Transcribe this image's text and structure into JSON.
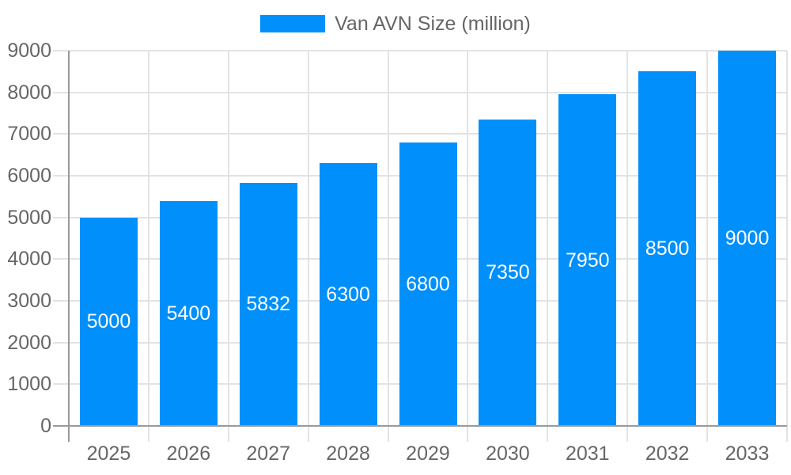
{
  "chart_data": {
    "type": "bar",
    "title": "",
    "legend": {
      "label": "Van AVN Size (million)",
      "position": "top"
    },
    "categories": [
      "2025",
      "2026",
      "2027",
      "2028",
      "2029",
      "2030",
      "2031",
      "2032",
      "2033"
    ],
    "series": [
      {
        "name": "Van AVN Size (million)",
        "values": [
          5000,
          5400,
          5832,
          6300,
          6800,
          7350,
          7950,
          8500,
          9000
        ]
      }
    ],
    "data_labels": [
      "5000",
      "5400",
      "5832",
      "6300",
      "6800",
      "7350",
      "7950",
      "8500",
      "9000"
    ],
    "xlabel": "",
    "ylabel": "",
    "ylim": [
      0,
      9000
    ],
    "yticks": [
      0,
      1000,
      2000,
      3000,
      4000,
      5000,
      6000,
      7000,
      8000,
      9000
    ],
    "grid": true,
    "legend_position": "top",
    "colors": {
      "bar": "#008FFB",
      "grid": "#e3e3e3",
      "axis": "#9a9a9a",
      "tick_label": "#666666",
      "legend_text": "#666666",
      "data_label": "#ffffff",
      "background": "#ffffff"
    }
  }
}
